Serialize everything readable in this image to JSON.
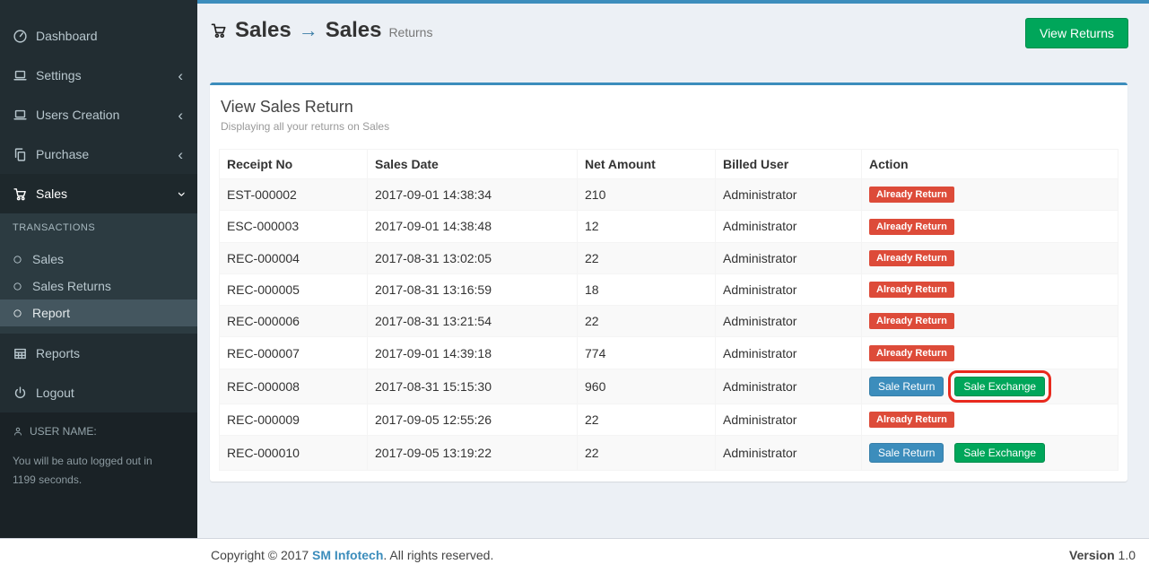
{
  "sidebar": {
    "items": [
      {
        "label": "Dashboard",
        "icon": "dashboard-icon"
      },
      {
        "label": "Settings",
        "icon": "monitor-icon",
        "chevron": "left"
      },
      {
        "label": "Users Creation",
        "icon": "monitor-icon",
        "chevron": "left"
      },
      {
        "label": "Purchase",
        "icon": "copy-icon",
        "chevron": "left"
      },
      {
        "label": "Sales",
        "icon": "cart-icon",
        "chevron": "down",
        "active": true
      }
    ],
    "submenu": {
      "header": "TRANSACTIONS",
      "items": [
        {
          "label": "Sales",
          "icon": "circle-icon"
        },
        {
          "label": "Sales Returns",
          "icon": "circle-icon"
        },
        {
          "label": "Report",
          "icon": "circle-icon",
          "highlighted": true
        }
      ]
    },
    "items_bottom": [
      {
        "label": "Reports",
        "icon": "table-icon"
      },
      {
        "label": "Logout",
        "icon": "power-icon"
      }
    ],
    "user": {
      "label": "USER NAME:",
      "note_line1": "You will be auto logged out in",
      "note_line2": "1199 seconds."
    }
  },
  "header": {
    "title_primary": "Sales",
    "arrow": "→",
    "title_secondary": "Sales",
    "title_sub": "Returns",
    "view_returns_button": "View Returns"
  },
  "panel": {
    "title": "View Sales Return",
    "subtitle": "Displaying all your returns on Sales"
  },
  "table": {
    "columns": [
      "Receipt No",
      "Sales Date",
      "Net Amount",
      "Billed User",
      "Action"
    ],
    "rows": [
      {
        "receipt_no": "EST-000002",
        "sales_date": "2017-09-01 14:38:34",
        "net_amount": "210",
        "billed_user": "Administrator",
        "actions": [
          {
            "label": "Already Return",
            "style": "badge-red",
            "interactable": false
          }
        ]
      },
      {
        "receipt_no": "ESC-000003",
        "sales_date": "2017-09-01 14:38:48",
        "net_amount": "12",
        "billed_user": "Administrator",
        "actions": [
          {
            "label": "Already Return",
            "style": "badge-red",
            "interactable": false
          }
        ]
      },
      {
        "receipt_no": "REC-000004",
        "sales_date": "2017-08-31 13:02:05",
        "net_amount": "22",
        "billed_user": "Administrator",
        "actions": [
          {
            "label": "Already Return",
            "style": "badge-red",
            "interactable": false
          }
        ]
      },
      {
        "receipt_no": "REC-000005",
        "sales_date": "2017-08-31 13:16:59",
        "net_amount": "18",
        "billed_user": "Administrator",
        "actions": [
          {
            "label": "Already Return",
            "style": "badge-red",
            "interactable": false
          }
        ]
      },
      {
        "receipt_no": "REC-000006",
        "sales_date": "2017-08-31 13:21:54",
        "net_amount": "22",
        "billed_user": "Administrator",
        "actions": [
          {
            "label": "Already Return",
            "style": "badge-red",
            "interactable": false
          }
        ]
      },
      {
        "receipt_no": "REC-000007",
        "sales_date": "2017-09-01 14:39:18",
        "net_amount": "774",
        "billed_user": "Administrator",
        "actions": [
          {
            "label": "Already Return",
            "style": "badge-red",
            "interactable": false
          }
        ]
      },
      {
        "receipt_no": "REC-000008",
        "sales_date": "2017-08-31 15:15:30",
        "net_amount": "960",
        "billed_user": "Administrator",
        "actions": [
          {
            "label": "Sale Return",
            "style": "btn-blue",
            "interactable": true
          },
          {
            "label": "Sale Exchange",
            "style": "btn-green",
            "interactable": true,
            "highlighted": true
          }
        ]
      },
      {
        "receipt_no": "REC-000009",
        "sales_date": "2017-09-05 12:55:26",
        "net_amount": "22",
        "billed_user": "Administrator",
        "actions": [
          {
            "label": "Already Return",
            "style": "badge-red",
            "interactable": false
          }
        ]
      },
      {
        "receipt_no": "REC-000010",
        "sales_date": "2017-09-05 13:19:22",
        "net_amount": "22",
        "billed_user": "Administrator",
        "actions": [
          {
            "label": "Sale Return",
            "style": "btn-blue",
            "interactable": true
          },
          {
            "label": "Sale Exchange",
            "style": "btn-green",
            "interactable": true
          }
        ]
      }
    ]
  },
  "footer": {
    "copyright_prefix": "Copyright © 2017",
    "company": "SM Infotech",
    "copyright_suffix": ". All rights reserved.",
    "version_label": "Version",
    "version_value": "1.0"
  },
  "colors": {
    "accent_blue": "#3c8dbc",
    "green": "#00a65a",
    "red_badge": "#dd4b39",
    "sidebar_bg": "#222d32",
    "sidebar_submenu_bg": "#2c3b41",
    "highlight_box_red": "#e8291d",
    "content_bg": "#ecf0f5"
  }
}
